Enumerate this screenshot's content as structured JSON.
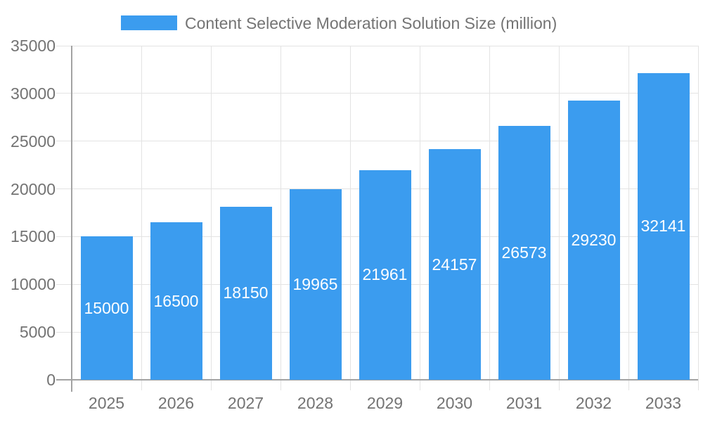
{
  "chart_data": {
    "type": "bar",
    "title": "Content Selective Moderation Solution Size (million)",
    "categories": [
      "2025",
      "2026",
      "2027",
      "2028",
      "2029",
      "2030",
      "2031",
      "2032",
      "2033"
    ],
    "series": [
      {
        "name": "Content Selective Moderation Solution Size (million)",
        "values": [
          15000,
          16500,
          18150,
          19965,
          21961,
          24157,
          26573,
          29230,
          32141
        ]
      }
    ],
    "xlabel": "",
    "ylabel": "",
    "ylim": [
      0,
      35000
    ],
    "yticks": [
      0,
      5000,
      10000,
      15000,
      20000,
      25000,
      30000,
      35000
    ],
    "grid": "on",
    "legend_position": "top",
    "bar_label_style": "white, centered inside bar"
  },
  "colors": {
    "bar": "#3B9CEF",
    "axis_line": "#a3a3a3",
    "gridline": "#e3e3e3",
    "tick_text": "#737373",
    "title_text": "#747474",
    "bar_label_text": "#ffffff",
    "background": "#ffffff"
  }
}
